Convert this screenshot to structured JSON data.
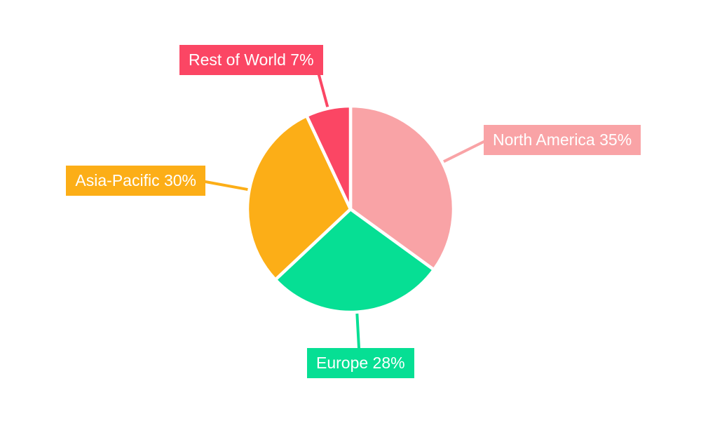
{
  "chart_data": {
    "type": "pie",
    "title": "",
    "categories": [
      "North America",
      "Europe",
      "Asia-Pacific",
      "Rest of World"
    ],
    "values": [
      35,
      28,
      30,
      7
    ],
    "unit": "%",
    "total": 100,
    "colors": [
      "#f9a3a6",
      "#06df94",
      "#fcae17",
      "#fb4664"
    ],
    "callout_labels": [
      "North America 35%",
      "Europe 28%",
      "Asia-Pacific 30%",
      "Rest of World 7%"
    ],
    "label_text_color": "#ffffff",
    "background_color": "#ffffff",
    "start_angle_deg": 0,
    "direction": "clockwise",
    "legend_position": "callout-labels",
    "grid": false
  }
}
